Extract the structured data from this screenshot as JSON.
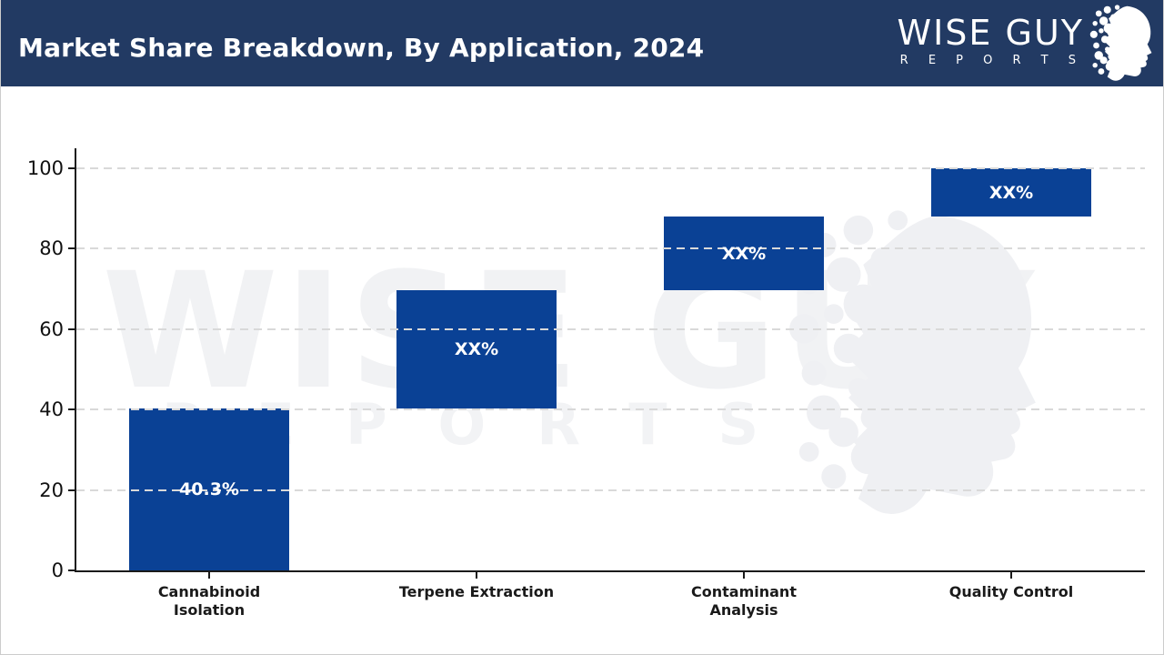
{
  "header": {
    "title": "Market Share Breakdown, By Application, 2024",
    "background_color": "#223a63",
    "logo": {
      "line1": "WISE GUY",
      "line2": "R E P O R T S"
    }
  },
  "watermark": {
    "line1": "WISE GUY",
    "line2": "REPORTS"
  },
  "chart_data": {
    "type": "bar",
    "subtype": "waterfall",
    "title": "Market Share Breakdown, By Application, 2024",
    "categories": [
      "Cannabinoid Isolation",
      "Terpene Extraction",
      "Contaminant Analysis",
      "Quality Control"
    ],
    "segments": [
      {
        "category": "Cannabinoid Isolation",
        "start": 0,
        "end": 40.3,
        "label": "40.3%",
        "label_lines": [
          "Cannabinoid",
          "Isolation"
        ]
      },
      {
        "category": "Terpene Extraction",
        "start": 40.3,
        "end": 69.7,
        "label": "XX%",
        "label_lines": [
          "Terpene Extraction"
        ]
      },
      {
        "category": "Contaminant Analysis",
        "start": 69.7,
        "end": 87.9,
        "label": "XX%",
        "label_lines": [
          "Contaminant",
          "Analysis"
        ]
      },
      {
        "category": "Quality Control",
        "start": 87.9,
        "end": 100,
        "label": "XX%",
        "label_lines": [
          "Quality Control"
        ]
      }
    ],
    "y_ticks": [
      0,
      20,
      40,
      60,
      80,
      100
    ],
    "ylim": [
      0,
      105
    ],
    "xlabel": "",
    "ylabel": "",
    "legend": "none",
    "grid": "horizontal dashed",
    "bar_color": "#0a4195",
    "bar_label_color": "#ffffff",
    "grid_color": "#d9d9d9",
    "axis_color": "#1a1a1a"
  }
}
